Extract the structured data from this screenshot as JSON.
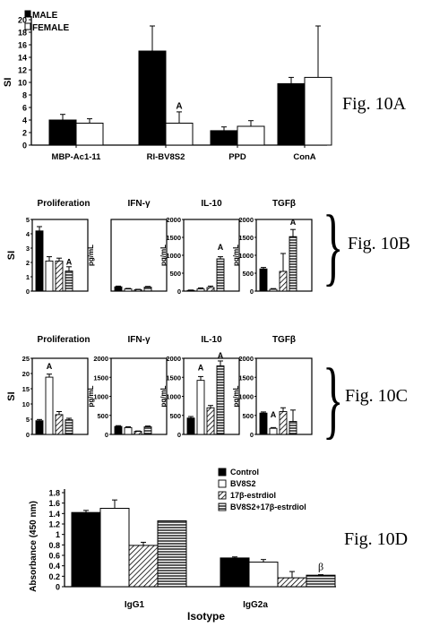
{
  "colors": {
    "black": "#000000",
    "white": "#ffffff",
    "gray": "#808080",
    "hatch": "#000000"
  },
  "brackets": {
    "b": "}",
    "c": "}"
  },
  "chart_data": [
    {
      "id": "A",
      "panel_label": "Fig. 10A",
      "type": "bar",
      "ylabel": "SI",
      "ylim": [
        0,
        20
      ],
      "yticks": [
        "0",
        "2",
        "4",
        "6",
        "8",
        "10",
        "12",
        "14",
        "16",
        "18",
        "20"
      ],
      "categories": [
        "MBP-Ac1-11",
        "RI-BV8S2",
        "PPD",
        "ConA"
      ],
      "legend_placement": "top-left",
      "series": [
        {
          "name": "MALE",
          "style": "black",
          "values": [
            4.0,
            15.0,
            2.3,
            9.8
          ],
          "errors": [
            0.9,
            4.0,
            0.6,
            1.0
          ]
        },
        {
          "name": "FEMALE",
          "style": "white",
          "values": [
            3.5,
            3.5,
            3.0,
            10.8
          ],
          "errors": [
            0.7,
            1.8,
            0.9,
            8.2
          ]
        }
      ],
      "annotations": [
        {
          "text": "A",
          "category": 1,
          "series": 1,
          "value": 5.8
        }
      ]
    },
    {
      "id": "B",
      "panel_label": "Fig. 10B",
      "type": "bar",
      "subplots": [
        {
          "title": "Proliferation",
          "ylabel": "SI",
          "ylim": [
            0,
            5
          ],
          "yticks": [
            "0",
            "1",
            "2",
            "3",
            "4",
            "5"
          ],
          "values": [
            4.2,
            2.1,
            2.1,
            1.4
          ],
          "errors": [
            0.3,
            0.3,
            0.2,
            0.3
          ],
          "annotation": {
            "text": "A",
            "bar": 3,
            "value": 1.85
          }
        },
        {
          "title": "IFN-γ",
          "ylabel": "pg/mL",
          "ylim": [
            0,
            2000
          ],
          "yticks": [],
          "values": [
            120,
            60,
            40,
            110
          ],
          "errors": [
            20,
            15,
            10,
            20
          ]
        },
        {
          "title": "IL-10",
          "ylabel": "pg/mL",
          "ylim": [
            0,
            2000
          ],
          "yticks": [
            "0",
            "500",
            "1000",
            "1500",
            "2000"
          ],
          "values": [
            20,
            60,
            100,
            900
          ],
          "errors": [
            10,
            30,
            40,
            60
          ],
          "annotation": {
            "text": "A",
            "bar": 3,
            "value": 1150
          }
        },
        {
          "title": "TGFβ",
          "ylabel": "pg/mL",
          "ylim": [
            0,
            2000
          ],
          "yticks": [
            "0",
            "500",
            "1000",
            "1500",
            "2000"
          ],
          "values": [
            620,
            50,
            550,
            1520
          ],
          "errors": [
            40,
            20,
            500,
            200
          ],
          "annotation": {
            "text": "A",
            "bar": 3,
            "value": 1850
          }
        }
      ]
    },
    {
      "id": "C",
      "panel_label": "Fig. 10C",
      "type": "bar",
      "subplots": [
        {
          "title": "Proliferation",
          "ylabel": "SI",
          "ylim": [
            0,
            25
          ],
          "yticks": [
            "0",
            "5",
            "10",
            "15",
            "20",
            "25"
          ],
          "values": [
            4.5,
            18.8,
            6.5,
            4.8
          ],
          "errors": [
            0.4,
            1.0,
            1.0,
            0.5
          ],
          "annotation": {
            "text": "A",
            "bar": 1,
            "value": 21.5
          }
        },
        {
          "title": "IFN-γ",
          "ylabel": "pg/mL",
          "ylim": [
            0,
            2000
          ],
          "yticks": [
            "0",
            "500",
            "1000",
            "1500",
            "2000"
          ],
          "values": [
            210,
            180,
            80,
            200
          ],
          "errors": [
            20,
            20,
            10,
            20
          ]
        },
        {
          "title": "IL-10",
          "ylabel": "pg/mL",
          "ylim": [
            0,
            2000
          ],
          "yticks": [
            "0",
            "500",
            "1000",
            "1500",
            "2000"
          ],
          "values": [
            430,
            1420,
            700,
            1800
          ],
          "errors": [
            40,
            100,
            60,
            130
          ],
          "annotation": {
            "text": "A",
            "bar": 1,
            "value": 1680
          },
          "annotation2": {
            "text": "A",
            "bar": 3,
            "value": 2000
          }
        },
        {
          "title": "TGFβ",
          "ylabel": "pg/mL",
          "ylim": [
            0,
            2000
          ],
          "yticks": [
            "0",
            "500",
            "1000",
            "1500",
            "2000"
          ],
          "values": [
            560,
            160,
            600,
            340
          ],
          "errors": [
            30,
            20,
            100,
            300
          ],
          "annotation": {
            "text": "A",
            "bar": 1,
            "value": 450
          }
        }
      ]
    },
    {
      "id": "D",
      "panel_label": "Fig. 10D",
      "type": "bar",
      "ylabel": "Absorbance (450 nm)",
      "xlabel": "Isotype",
      "ylim": [
        0,
        1.8
      ],
      "yticks": [
        "0",
        "0.2",
        "0.4",
        "0.6",
        "0.8",
        "1",
        "1.2",
        "1.4",
        "1.6",
        "1.8"
      ],
      "categories": [
        "IgG1",
        "IgG2a"
      ],
      "legend_placement": "top-right",
      "series": [
        {
          "name": "Control",
          "style": "black",
          "values": [
            1.42,
            0.55
          ],
          "errors": [
            0.04,
            0.02
          ]
        },
        {
          "name": "BV8S2",
          "style": "white",
          "values": [
            1.5,
            0.47
          ],
          "errors": [
            0.16,
            0.05
          ]
        },
        {
          "name": "17β-estrdiol",
          "style": "hatch",
          "values": [
            0.79,
            0.17
          ],
          "errors": [
            0.06,
            0.12
          ]
        },
        {
          "name": "BV8S2+17β-estrdiol",
          "style": "hatch2",
          "values": [
            1.26,
            0.22
          ],
          "errors": [
            0.0,
            0.01
          ]
        }
      ],
      "annotations": [
        {
          "text": "β",
          "category": 1,
          "series": 3,
          "value": 0.32
        }
      ]
    }
  ]
}
